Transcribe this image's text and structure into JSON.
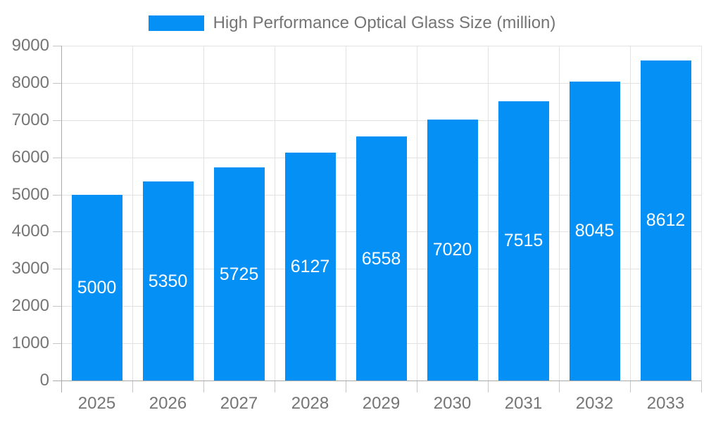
{
  "chart_data": {
    "type": "bar",
    "title": "High Performance Optical Glass Size (million)",
    "categories": [
      "2025",
      "2026",
      "2027",
      "2028",
      "2029",
      "2030",
      "2031",
      "2032",
      "2033"
    ],
    "values": [
      5000,
      5350,
      5725,
      6127,
      6558,
      7020,
      7515,
      8045,
      8612
    ],
    "xlabel": "",
    "ylabel": "",
    "ylim": [
      0,
      9000
    ],
    "y_tick_step": 1000,
    "y_tick_labels": [
      "0",
      "1000",
      "2000",
      "3000",
      "4000",
      "5000",
      "6000",
      "7000",
      "8000",
      "9000"
    ],
    "grid": true,
    "legend_position": "top-center",
    "colors": {
      "bar": "#0590F5",
      "bar_label": "#ffffff",
      "axis_text": "#757575",
      "grid_line": "#e2e2e2",
      "axis_line": "#aaaaaa",
      "tick_line": "#c6c6c6",
      "background": "#ffffff"
    }
  }
}
